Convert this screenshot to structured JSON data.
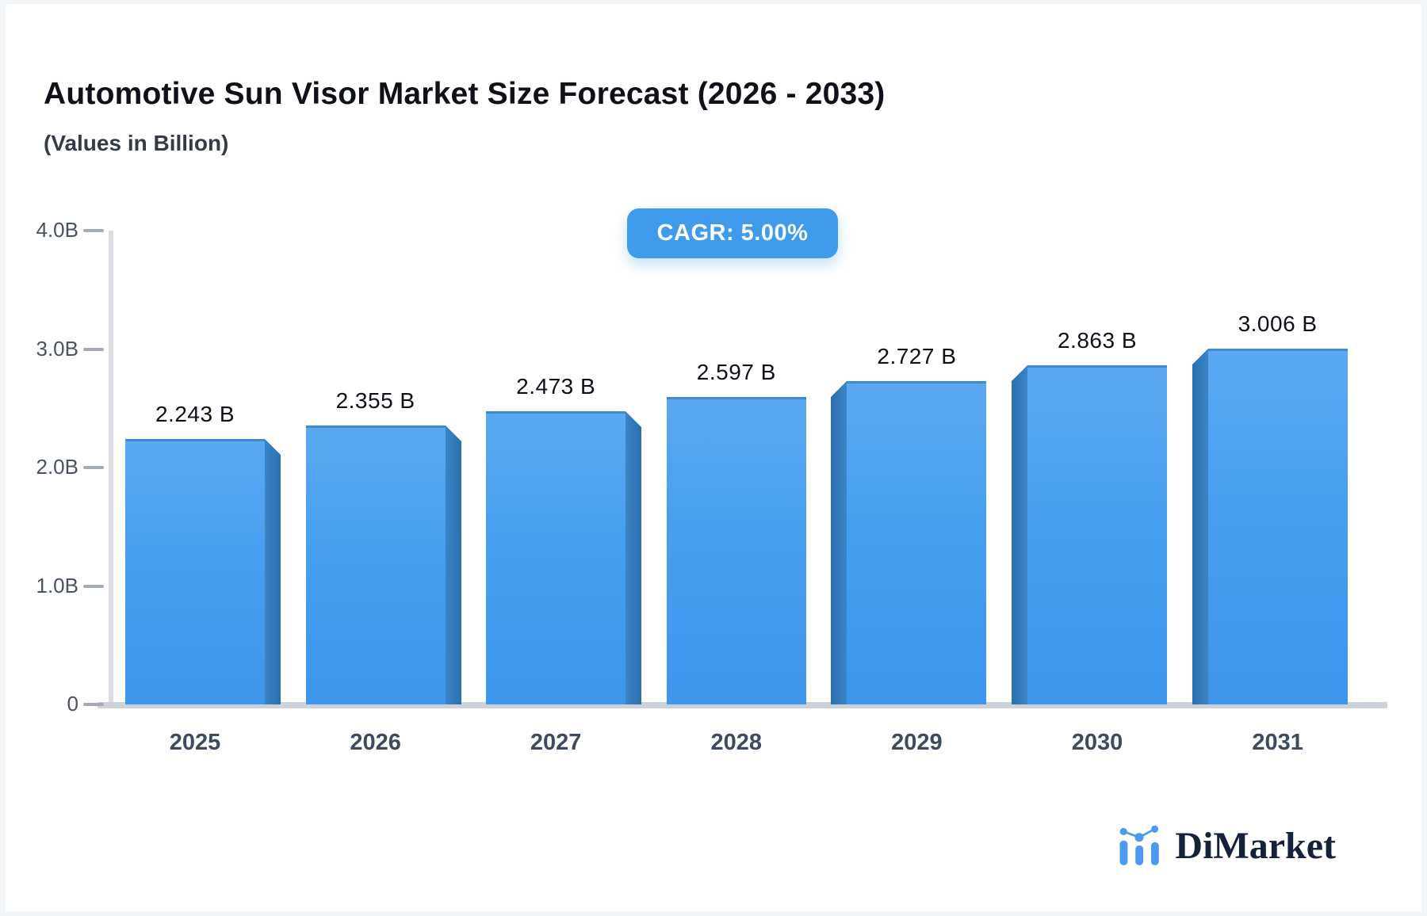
{
  "page": {
    "background_color": "#f3f6f9",
    "card_color": "#ffffff"
  },
  "header": {
    "title": "Automotive Sun Visor Market Size Forecast (2026 - 2033)",
    "subtitle": "(Values in Billion)",
    "cagr_badge": "CAGR: 5.00%",
    "badge_color": "#3f9cec"
  },
  "chart_data": {
    "type": "bar",
    "style": "3d-perspective-extruded",
    "title": "Automotive Sun Visor Market Size Forecast (2026 - 2033)",
    "subtitle": "(Values in Billion)",
    "xlabel": "",
    "ylabel": "",
    "categories": [
      "2025",
      "2026",
      "2027",
      "2028",
      "2029",
      "2030",
      "2031"
    ],
    "values": [
      2.243,
      2.355,
      2.473,
      2.597,
      2.727,
      2.863,
      3.006
    ],
    "value_labels": [
      "2.243 B",
      "2.355 B",
      "2.473 B",
      "2.597 B",
      "2.727 B",
      "2.863 B",
      "3.006 B"
    ],
    "ylim": [
      0,
      4.0
    ],
    "y_ticks": [
      {
        "label": "4.0B",
        "value": 4.0
      },
      {
        "label": "3.0B",
        "value": 3.0
      },
      {
        "label": "2.0B",
        "value": 2.0
      },
      {
        "label": "1.0B",
        "value": 1.0
      },
      {
        "label": "0",
        "value": 0.0
      }
    ],
    "grid": false,
    "legend": "none",
    "bar_color": "#459bee",
    "bar_side_color": "#2f75b4",
    "cagr": "5.00%"
  },
  "footer": {
    "brand": "DiMarket",
    "brand_icon": "mini-bar-chart-logo-icon",
    "brand_color": "#15223a",
    "icon_color": "#4a9af0"
  }
}
